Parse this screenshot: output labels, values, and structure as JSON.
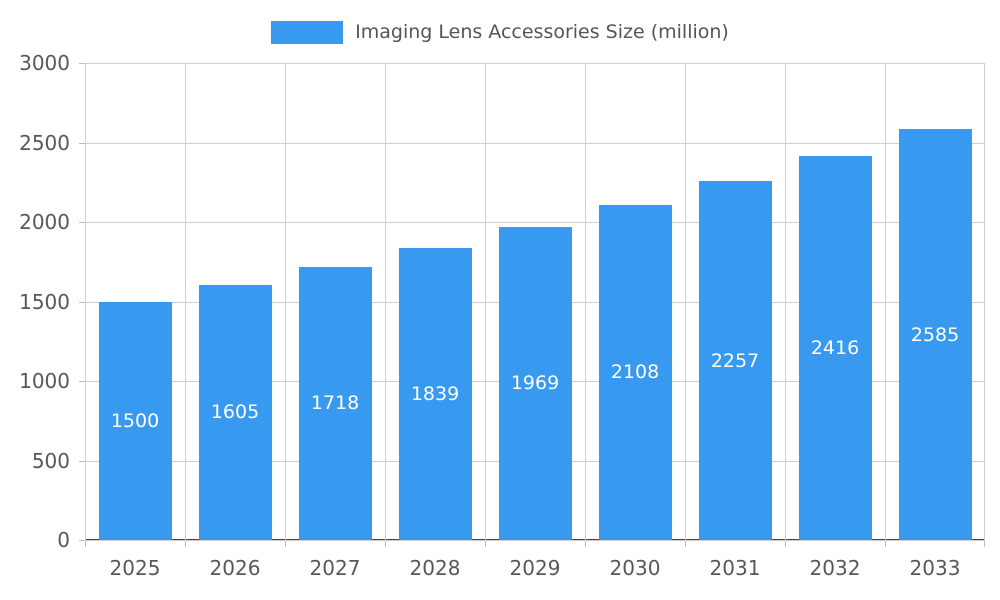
{
  "legend": {
    "label": "Imaging Lens Accessories Size (million)"
  },
  "colors": {
    "bar": "#3899F0",
    "grid": "#cfcfcf",
    "axis": "#424242",
    "tick_text": "#58585a",
    "value_text": "#ffffff",
    "background": "#ffffff"
  },
  "chart_data": {
    "type": "bar",
    "title": "Imaging Lens Accessories Size (million)",
    "categories": [
      "2025",
      "2026",
      "2027",
      "2028",
      "2029",
      "2030",
      "2031",
      "2032",
      "2033"
    ],
    "series": [
      {
        "name": "Imaging Lens Accessories Size (million)",
        "values": [
          1500,
          1605,
          1718,
          1839,
          1969,
          2108,
          2257,
          2416,
          2585
        ]
      }
    ],
    "xlabel": "",
    "ylabel": "",
    "ylim": [
      0,
      3000
    ],
    "ytick_step": 500,
    "grid": true,
    "legend_position": "top",
    "value_label_position": "inside-center"
  }
}
